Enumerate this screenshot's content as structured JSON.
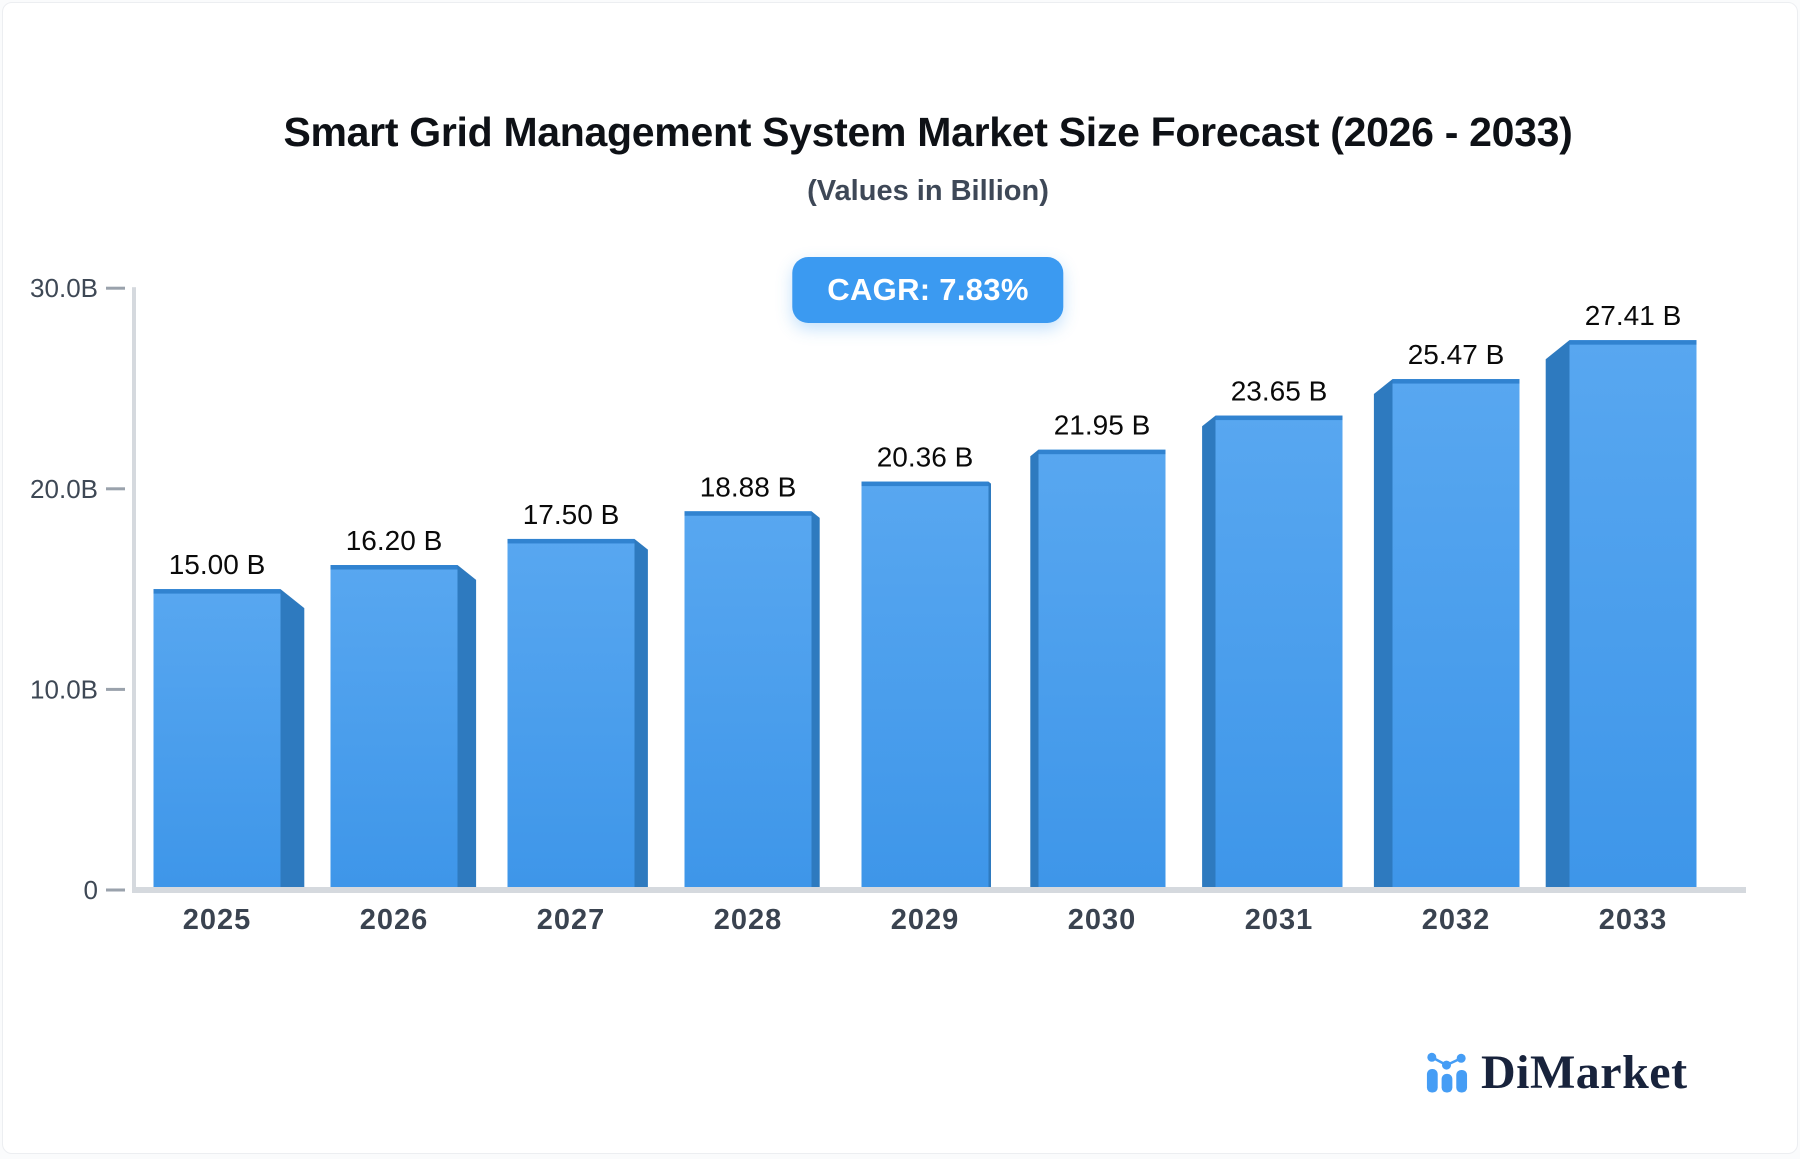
{
  "title": "Smart Grid Management System Market Size Forecast (2026 - 2033)",
  "subtitle": "(Values in Billion)",
  "badge": {
    "label": "CAGR: 7.83%",
    "bg_color": "#3B9AF1",
    "text_color": "#FFFFFF"
  },
  "brand": {
    "name": "DiMarket",
    "icon": "mini-bar-chart-logo-icon",
    "icon_color": "#459DF5",
    "text_color": "#18233C"
  },
  "colors": {
    "bar_face_top": "#58A7F0",
    "bar_face_bottom": "#3E96E9",
    "bar_top_edge": "#3183D0",
    "bar_side_3d": "#2E7ABF",
    "axis_line": "#D5D9DE",
    "tick_dash": "#9AA2AC",
    "axis_label": "#3E4855",
    "x_axis_label": "#3A4350",
    "value_label": "#0A0A0A"
  },
  "chart_data": {
    "type": "bar",
    "style": "3d-perspective-bars",
    "title": "Smart Grid Management System Market Size Forecast (2026 - 2033)",
    "subtitle": "(Values in Billion)",
    "unit": "Billion",
    "cagr_percent": 7.83,
    "categories": [
      "2025",
      "2026",
      "2027",
      "2028",
      "2029",
      "2030",
      "2031",
      "2032",
      "2033"
    ],
    "values": [
      15.0,
      16.2,
      17.5,
      18.88,
      20.36,
      21.95,
      23.65,
      25.47,
      27.41
    ],
    "value_labels": [
      "15.00 B",
      "16.20 B",
      "17.50 B",
      "18.88 B",
      "20.36 B",
      "21.95 B",
      "23.65 B",
      "25.47 B",
      "27.41 B"
    ],
    "xlabel": "",
    "ylabel": "",
    "ylim": [
      0,
      30
    ],
    "y_ticks": [
      {
        "value": 0,
        "label": "0"
      },
      {
        "value": 10,
        "label": "10.0B"
      },
      {
        "value": 20,
        "label": "20.0B"
      },
      {
        "value": 30,
        "label": "30.0B"
      }
    ],
    "grid": false,
    "legend": false
  }
}
